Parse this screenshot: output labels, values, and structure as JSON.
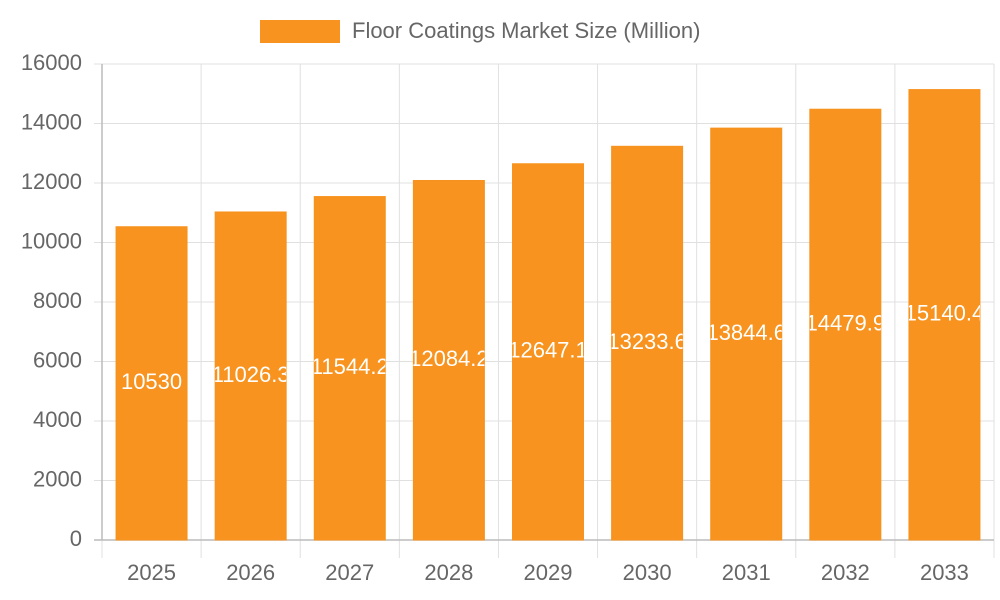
{
  "chart_data": {
    "type": "bar",
    "legend_label": "Floor Coatings Market Size (Million)",
    "categories": [
      "2025",
      "2026",
      "2027",
      "2028",
      "2029",
      "2030",
      "2031",
      "2032",
      "2033"
    ],
    "series": [
      {
        "name": "Floor Coatings Market Size (Million)",
        "color": "#f7931e",
        "values": [
          10530,
          11026.3,
          11544.2,
          12084.2,
          12647.1,
          13233.6,
          13844.6,
          14479.9,
          15140.4
        ]
      }
    ],
    "ylim": [
      0,
      16000
    ],
    "yticks": [
      0,
      2000,
      4000,
      6000,
      8000,
      10000,
      12000,
      14000,
      16000
    ],
    "grid": true,
    "legend": "top"
  }
}
